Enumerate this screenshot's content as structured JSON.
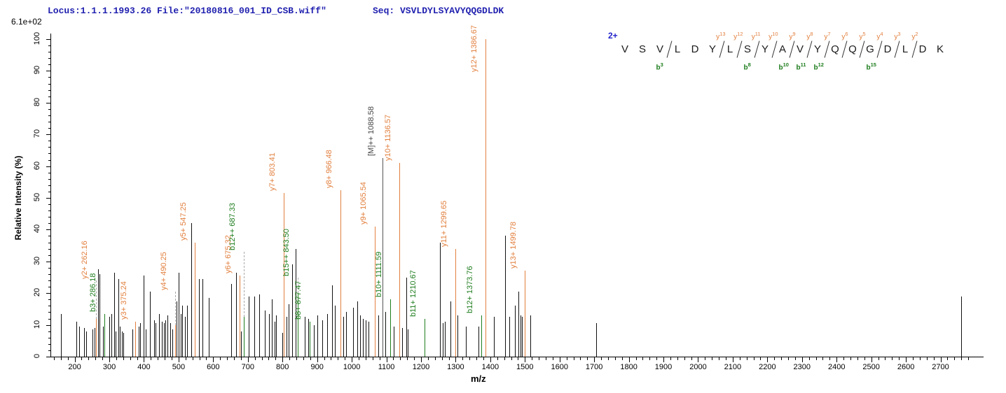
{
  "header": {
    "locus_file": "Locus:1.1.1.1993.26 File:\"20180816_001_ID_CSB.wiff\"",
    "seq_label": "Seq: VSVLDYLSYAVYQQGDLDK",
    "max_intensity": "6.1e+02"
  },
  "colors": {
    "y_ion": "#e2803f",
    "b_ion": "#1e7d1e",
    "precursor": "#555555",
    "black_peak": "#111111",
    "header_blue": "#2121b0",
    "charge_blue": "#2222cc"
  },
  "chart_data": {
    "type": "bar",
    "subtype": "mass-spectrum-stick-plot",
    "title": "",
    "xlabel": "m/z",
    "ylabel": "Relative  Intensity (%)",
    "x_range": [
      130,
      2800
    ],
    "y_range": [
      0,
      100
    ],
    "x_major_tick_step": 100,
    "x_minor_tick_step": 20,
    "y_major_tick_step": 10,
    "y_minor_tick_step": 2,
    "x_tick_labels": [
      200,
      300,
      400,
      500,
      600,
      700,
      800,
      900,
      1000,
      1100,
      1200,
      1300,
      1400,
      1500,
      1600,
      1700,
      1800,
      1900,
      2000,
      2100,
      2200,
      2300,
      2400,
      2500,
      2600,
      2700
    ],
    "y_tick_labels": [
      0,
      10,
      20,
      30,
      40,
      50,
      60,
      70,
      80,
      90,
      100
    ],
    "grid": false,
    "legend": "none",
    "annotated_peaks": [
      {
        "label": "y2+ 262.16",
        "mz": 262.16,
        "intensity": 12,
        "series": "y-ion",
        "dash_to": 24
      },
      {
        "label": "b3+ 286.18",
        "mz": 286.18,
        "intensity": 13.5,
        "series": "b-ion"
      },
      {
        "label": "y3+ 375.24",
        "mz": 375.24,
        "intensity": 11,
        "series": "y-ion"
      },
      {
        "label": "y4+ 490.25",
        "mz": 490.25,
        "intensity": 10,
        "series": "y-ion",
        "dash_to": 20.5
      },
      {
        "label": "y5+ 547.25",
        "mz": 547.25,
        "intensity": 36,
        "series": "y-ion"
      },
      {
        "label": "y6+ 675.32",
        "mz": 675.32,
        "intensity": 25.5,
        "series": "y-ion"
      },
      {
        "label": "b12++ 687.33",
        "mz": 687.33,
        "intensity": 12.5,
        "series": "b-ion",
        "dash_to": 33
      },
      {
        "label": "y7+ 803.41",
        "mz": 803.41,
        "intensity": 51.5,
        "series": "y-ion"
      },
      {
        "label": "b15++ 843.50",
        "mz": 843.5,
        "intensity": 20,
        "series": "b-ion",
        "dash_to": 25
      },
      {
        "label": "b8+ 877.47",
        "mz": 877.47,
        "intensity": 11,
        "series": "b-ion"
      },
      {
        "label": "y8+ 966.48",
        "mz": 966.48,
        "intensity": 52.5,
        "series": "y-ion"
      },
      {
        "label": "y9+ 1065.54",
        "mz": 1065.54,
        "intensity": 41,
        "series": "y-ion"
      },
      {
        "label": "[M]++ 1088.58",
        "mz": 1088.58,
        "intensity": 62.5,
        "series": "precursor"
      },
      {
        "label": "b10+ 1111.59",
        "mz": 1111.59,
        "intensity": 18,
        "series": "b-ion"
      },
      {
        "label": "y10+ 1136.57",
        "mz": 1136.57,
        "intensity": 61,
        "series": "y-ion"
      },
      {
        "label": "b11+ 1210.67",
        "mz": 1210.67,
        "intensity": 12,
        "series": "b-ion"
      },
      {
        "label": "y11+ 1299.65",
        "mz": 1299.65,
        "intensity": 34,
        "series": "y-ion"
      },
      {
        "label": "b12+ 1373.76",
        "mz": 1373.76,
        "intensity": 13,
        "series": "b-ion"
      },
      {
        "label": "y12+ 1386.67",
        "mz": 1386.67,
        "intensity": 100,
        "series": "y-ion"
      },
      {
        "label": "y13+ 1499.78",
        "mz": 1499.78,
        "intensity": 27,
        "series": "y-ion"
      }
    ],
    "unlabeled_peaks": [
      [
        160,
        13.5
      ],
      [
        205,
        11
      ],
      [
        212,
        9.5
      ],
      [
        228,
        9
      ],
      [
        233,
        8
      ],
      [
        252,
        8.5
      ],
      [
        257,
        9
      ],
      [
        267,
        27.5
      ],
      [
        271,
        26
      ],
      [
        281,
        9.5
      ],
      [
        299,
        12.5
      ],
      [
        305,
        13.5
      ],
      [
        313,
        26.5
      ],
      [
        319,
        8
      ],
      [
        327,
        24.5
      ],
      [
        331,
        9.5
      ],
      [
        336,
        8
      ],
      [
        341,
        7.5
      ],
      [
        366,
        8.5
      ],
      [
        384,
        9.5
      ],
      [
        389,
        10.5
      ],
      [
        398,
        25.5
      ],
      [
        404,
        8.5
      ],
      [
        418,
        20.5
      ],
      [
        429,
        11.5
      ],
      [
        434,
        10.5
      ],
      [
        444,
        13.5
      ],
      [
        452,
        11
      ],
      [
        457,
        10.5
      ],
      [
        462,
        11.5
      ],
      [
        468,
        13
      ],
      [
        475,
        10.5
      ],
      [
        482,
        8.5
      ],
      [
        494,
        17.5
      ],
      [
        500,
        26.5
      ],
      [
        506,
        13.5
      ],
      [
        511,
        16
      ],
      [
        519,
        12.5
      ],
      [
        524,
        16
      ],
      [
        536,
        42
      ],
      [
        558,
        24.5
      ],
      [
        569,
        24.5
      ],
      [
        587,
        18.5
      ],
      [
        652,
        23
      ],
      [
        666,
        26.5
      ],
      [
        680,
        8
      ],
      [
        702,
        19
      ],
      [
        718,
        19
      ],
      [
        732,
        19.5
      ],
      [
        749,
        14.5
      ],
      [
        761,
        13.5
      ],
      [
        769,
        18
      ],
      [
        777,
        11
      ],
      [
        782,
        13
      ],
      [
        800,
        7.5
      ],
      [
        812,
        12.5
      ],
      [
        818,
        16.5
      ],
      [
        828,
        29
      ],
      [
        838,
        34
      ],
      [
        864,
        12.5
      ],
      [
        874,
        12
      ],
      [
        890,
        10
      ],
      [
        900,
        13
      ],
      [
        914,
        11.5
      ],
      [
        928,
        13.5
      ],
      [
        943,
        22.5
      ],
      [
        952,
        16
      ],
      [
        975,
        12.5
      ],
      [
        983,
        14
      ],
      [
        1004,
        15.5
      ],
      [
        1016,
        17.5
      ],
      [
        1024,
        13
      ],
      [
        1032,
        12
      ],
      [
        1040,
        11.5
      ],
      [
        1048,
        11
      ],
      [
        1077,
        13
      ],
      [
        1097,
        14
      ],
      [
        1122,
        9.5
      ],
      [
        1145,
        9
      ],
      [
        1157,
        25
      ],
      [
        1162,
        8.5
      ],
      [
        1255,
        36
      ],
      [
        1262,
        10.5
      ],
      [
        1268,
        11
      ],
      [
        1285,
        17.5
      ],
      [
        1305,
        13
      ],
      [
        1330,
        9.5
      ],
      [
        1366,
        9.5
      ],
      [
        1410,
        12.5
      ],
      [
        1443,
        38
      ],
      [
        1455,
        12.5
      ],
      [
        1470,
        16
      ],
      [
        1481,
        20.5
      ],
      [
        1488,
        13
      ],
      [
        1491,
        12.5
      ],
      [
        1516,
        13
      ],
      [
        1705,
        10.5
      ],
      [
        2760,
        19
      ]
    ]
  },
  "sequence_panel": {
    "charge_label": "2+",
    "residues": [
      "V",
      "S",
      "V",
      "L",
      "D",
      "Y",
      "L",
      "S",
      "Y",
      "A",
      "V",
      "Y",
      "Q",
      "Q",
      "G",
      "D",
      "L",
      "D",
      "K"
    ],
    "cleavages": [
      {
        "after": 3,
        "b": "b3"
      },
      {
        "after": 6,
        "y": "y13"
      },
      {
        "after": 7,
        "y": "y12"
      },
      {
        "after": 8,
        "y": "y11",
        "b": "b8"
      },
      {
        "after": 9,
        "y": "y10"
      },
      {
        "after": 10,
        "y": "y9",
        "b": "b10"
      },
      {
        "after": 11,
        "y": "y8",
        "b": "b11"
      },
      {
        "after": 12,
        "y": "y7",
        "b": "b12"
      },
      {
        "after": 13,
        "y": "y6"
      },
      {
        "after": 14,
        "y": "y5"
      },
      {
        "after": 15,
        "y": "y4",
        "b": "b15"
      },
      {
        "after": 16,
        "y": "y3"
      },
      {
        "after": 17,
        "y": "y2"
      }
    ]
  }
}
